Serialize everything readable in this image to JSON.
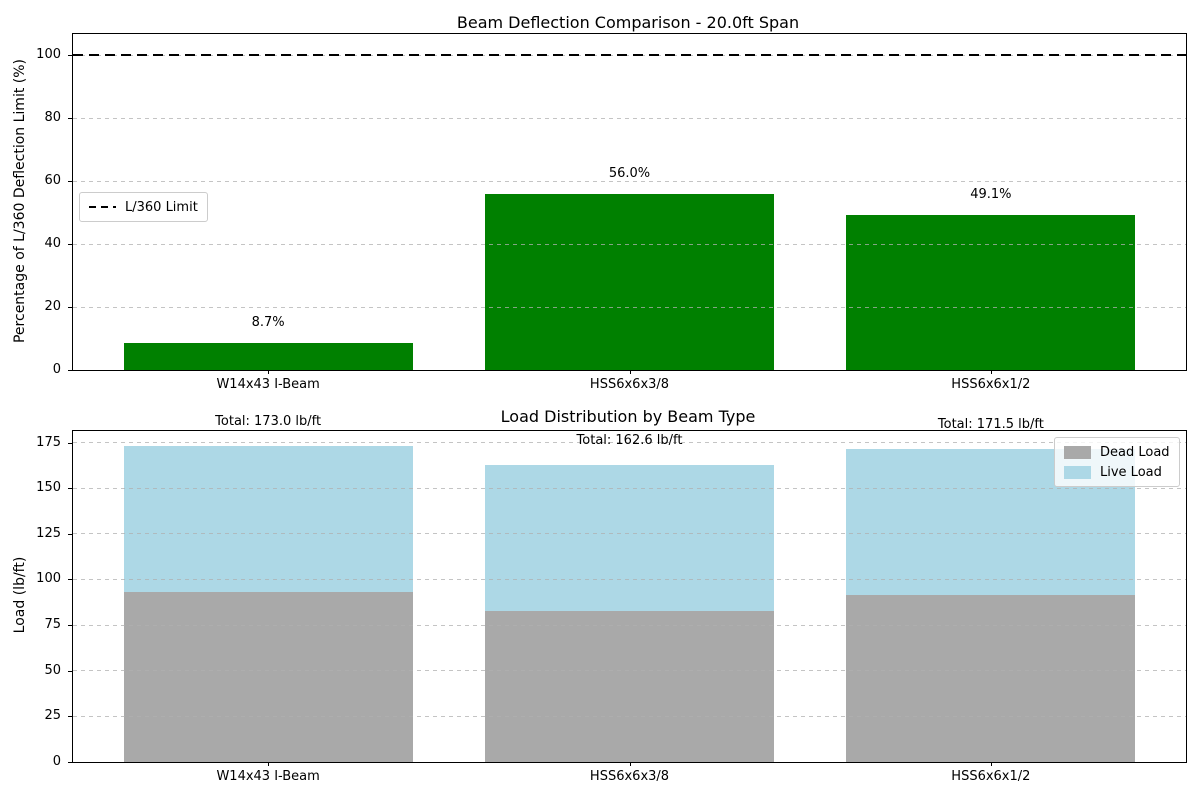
{
  "accent_colors": {
    "deflection_bar": "#008000",
    "dead_load": "#a9a9a9",
    "live_load": "#add8e6",
    "limit_line": "#000000",
    "grid": "#b0b0b0",
    "background": "#ffffff"
  },
  "chart_data": [
    {
      "type": "bar",
      "title": "Beam Deflection Comparison - 20.0ft Span",
      "ylabel": "Percentage of L/360 Deflection Limit (%)",
      "categories": [
        "W14x43 I-Beam",
        "HSS6x6x3/8",
        "HSS6x6x1/2"
      ],
      "values": [
        8.7,
        56.0,
        49.1
      ],
      "bar_labels": [
        "8.7%",
        "56.0%",
        "49.1%"
      ],
      "bar_color": "#008000",
      "yticks": [
        0,
        20,
        40,
        60,
        80,
        100
      ],
      "ylim": [
        0,
        106.7
      ],
      "grid": true,
      "limit_line": {
        "value": 100,
        "label": "L/360 Limit",
        "color": "#000000",
        "style": "dashed"
      },
      "legend": {
        "position": "center-left",
        "items": [
          {
            "label": "L/360 Limit",
            "marker": "dashed-line",
            "color": "#000000"
          }
        ]
      }
    },
    {
      "type": "stacked-bar",
      "title": "Load Distribution by Beam Type",
      "ylabel": "Load (lb/ft)",
      "categories": [
        "W14x43 I-Beam",
        "HSS6x6x3/8",
        "HSS6x6x1/2"
      ],
      "series": [
        {
          "name": "Dead Load",
          "color": "#a9a9a9",
          "values": [
            93.0,
            82.6,
            91.5
          ]
        },
        {
          "name": "Live Load",
          "color": "#add8e6",
          "values": [
            80.0,
            80.0,
            80.0
          ]
        }
      ],
      "totals": [
        173.0,
        162.6,
        171.5
      ],
      "total_labels": [
        "Total: 173.0 lb/ft",
        "Total: 162.6 lb/ft",
        "Total: 171.5 lb/ft"
      ],
      "yticks": [
        0,
        25,
        50,
        75,
        100,
        125,
        150,
        175
      ],
      "ylim": [
        0,
        181.3
      ],
      "grid": true,
      "legend": {
        "position": "upper-right",
        "items": [
          {
            "label": "Dead Load",
            "marker": "swatch",
            "color": "#a9a9a9"
          },
          {
            "label": "Live Load",
            "marker": "swatch",
            "color": "#add8e6"
          }
        ]
      }
    }
  ]
}
